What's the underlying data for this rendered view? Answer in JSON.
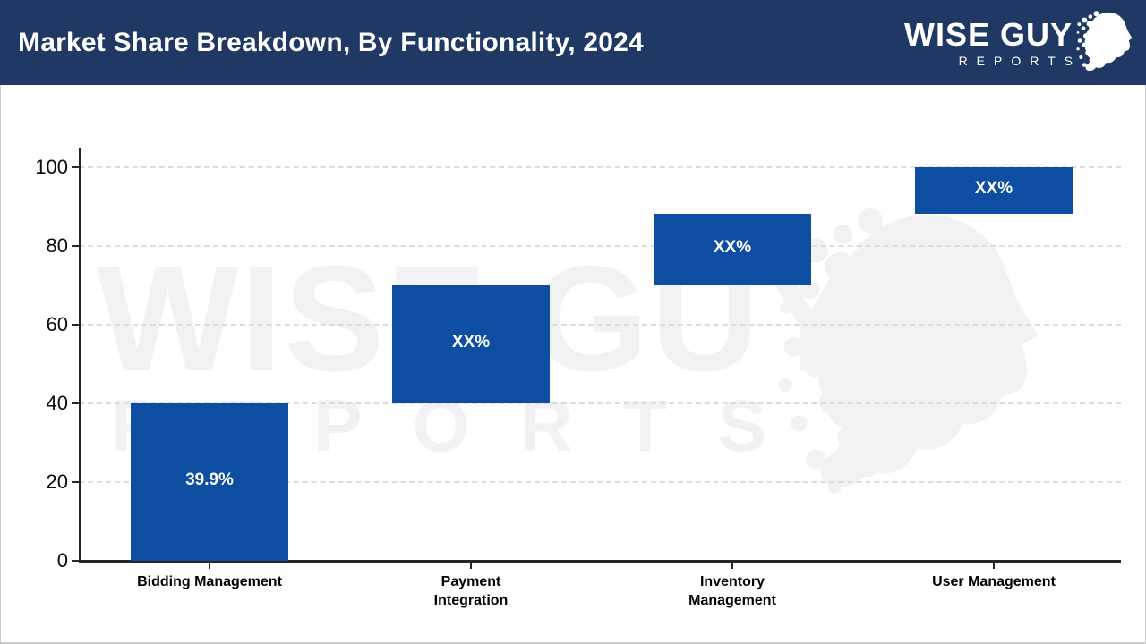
{
  "header": {
    "title": "Market Share Breakdown, By Functionality, 2024",
    "logo": {
      "line1": "WISE GUY",
      "line2": "REPORTS"
    }
  },
  "watermark": {
    "line1": "WISE GUY",
    "line2": "REPORTS"
  },
  "chart_data": {
    "type": "bar",
    "subtype": "floating-waterfall",
    "title": "Market Share Breakdown, By Functionality, 2024",
    "categories": [
      "Bidding Management",
      "Payment\nIntegration",
      "Inventory\nManagement",
      "User Management"
    ],
    "segments": [
      {
        "category": "Bidding Management",
        "start": 0,
        "end": 39.9,
        "label": "39.9%"
      },
      {
        "category": "Payment Integration",
        "start": 39.9,
        "end": 69.9,
        "label": "XX%"
      },
      {
        "category": "Inventory Management",
        "start": 69.9,
        "end": 88.1,
        "label": "XX%"
      },
      {
        "category": "User Management",
        "start": 88.1,
        "end": 100,
        "label": "XX%"
      }
    ],
    "yticks": [
      0,
      20,
      40,
      60,
      80,
      100
    ],
    "ylim": [
      0,
      105
    ],
    "xlabel": "",
    "ylabel": "",
    "grid": "horizontal-dashed",
    "legend": "none",
    "bar_color": "#0d4da2",
    "bar_label_color": "#ffffff"
  },
  "colors": {
    "header_navy": "#1f3864",
    "bar_blue": "#0d4da2",
    "gridline": "#dcdcdc",
    "axis": "#262626",
    "watermark": "#f2f2f4",
    "frame_border": "#cccccc"
  }
}
